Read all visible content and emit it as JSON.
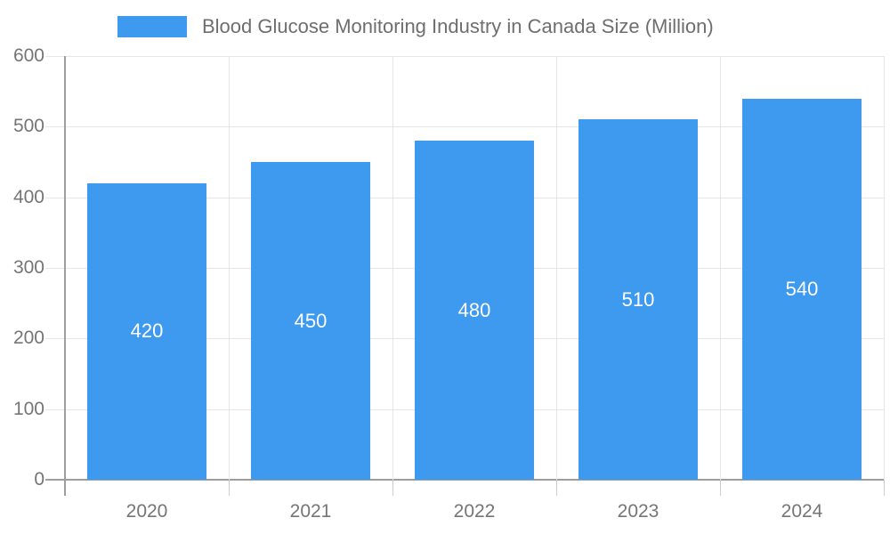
{
  "chart_data": {
    "type": "bar",
    "title": "Blood Glucose Monitoring Industry in Canada Size (Million)",
    "legend_entries": [
      "Blood Glucose Monitoring Industry in Canada Size (Million)"
    ],
    "legend_position": "top",
    "categories": [
      "2020",
      "2021",
      "2022",
      "2023",
      "2024"
    ],
    "series": [
      {
        "name": "Blood Glucose Monitoring Industry in Canada Size (Million)",
        "values": [
          420,
          450,
          480,
          510,
          540
        ]
      }
    ],
    "value_labels": [
      "420",
      "450",
      "480",
      "510",
      "540"
    ],
    "xlabel": "",
    "ylabel": "",
    "ylim": [
      0,
      600
    ],
    "y_ticks": [
      0,
      100,
      200,
      300,
      400,
      500,
      600
    ],
    "grid": true
  },
  "colors": {
    "bar": "#3e9aef",
    "grid": "#e6e6e6",
    "axis": "#9e9e9e",
    "tick": "#cccccc",
    "axis_label": "#757575",
    "legend_text": "#6e6e6e",
    "value_label": "#ffffff",
    "background": "#ffffff"
  }
}
